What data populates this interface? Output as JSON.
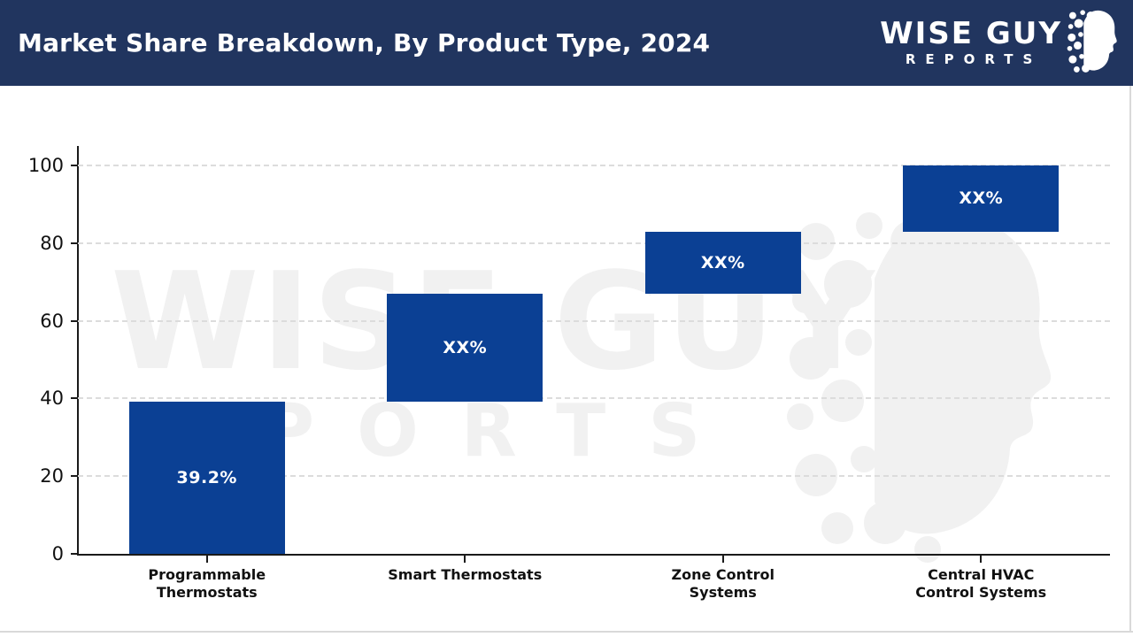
{
  "header": {
    "title": "Market Share Breakdown, By Product Type, 2024",
    "logo": {
      "line1": "WISE GUY",
      "line2": "REPORTS"
    }
  },
  "watermark": {
    "line1": "WISE GUY",
    "line2": "PORTS"
  },
  "colors": {
    "header_bg": "#21355f",
    "bar_fill": "#0b4094",
    "bar_label_text": "#ffffff",
    "grid": "#dcdcdc",
    "axis": "#1a1a1a",
    "watermark": "#f1f1f1",
    "title_text": "#ffffff"
  },
  "chart_data": {
    "type": "bar",
    "subtype": "waterfall",
    "title": "Market Share Breakdown, By Product Type, 2024",
    "xlabel": "",
    "ylabel": "",
    "ylim": [
      0,
      105
    ],
    "yticks": [
      0,
      20,
      40,
      60,
      80,
      100
    ],
    "grid": "horizontal-dashed",
    "legend": "none",
    "categories": [
      "Programmable Thermostats",
      "Smart Thermostats",
      "Zone Control Systems",
      "Central HVAC Control Systems"
    ],
    "bars": [
      {
        "category": "Programmable Thermostats",
        "category_lines": [
          "Programmable",
          "Thermostats"
        ],
        "label": "39.2%",
        "start": 0,
        "end": 39.2,
        "value": 39.2
      },
      {
        "category": "Smart Thermostats",
        "category_lines": [
          "Smart Thermostats"
        ],
        "label": "XX%",
        "start": 39.2,
        "end": 67,
        "value": 27.8
      },
      {
        "category": "Zone Control Systems",
        "category_lines": [
          "Zone Control",
          "Systems"
        ],
        "label": "XX%",
        "start": 67,
        "end": 83,
        "value": 16
      },
      {
        "category": "Central HVAC Control Systems",
        "category_lines": [
          "Central HVAC",
          "Control Systems"
        ],
        "label": "XX%",
        "start": 83,
        "end": 100,
        "value": 17
      }
    ]
  }
}
